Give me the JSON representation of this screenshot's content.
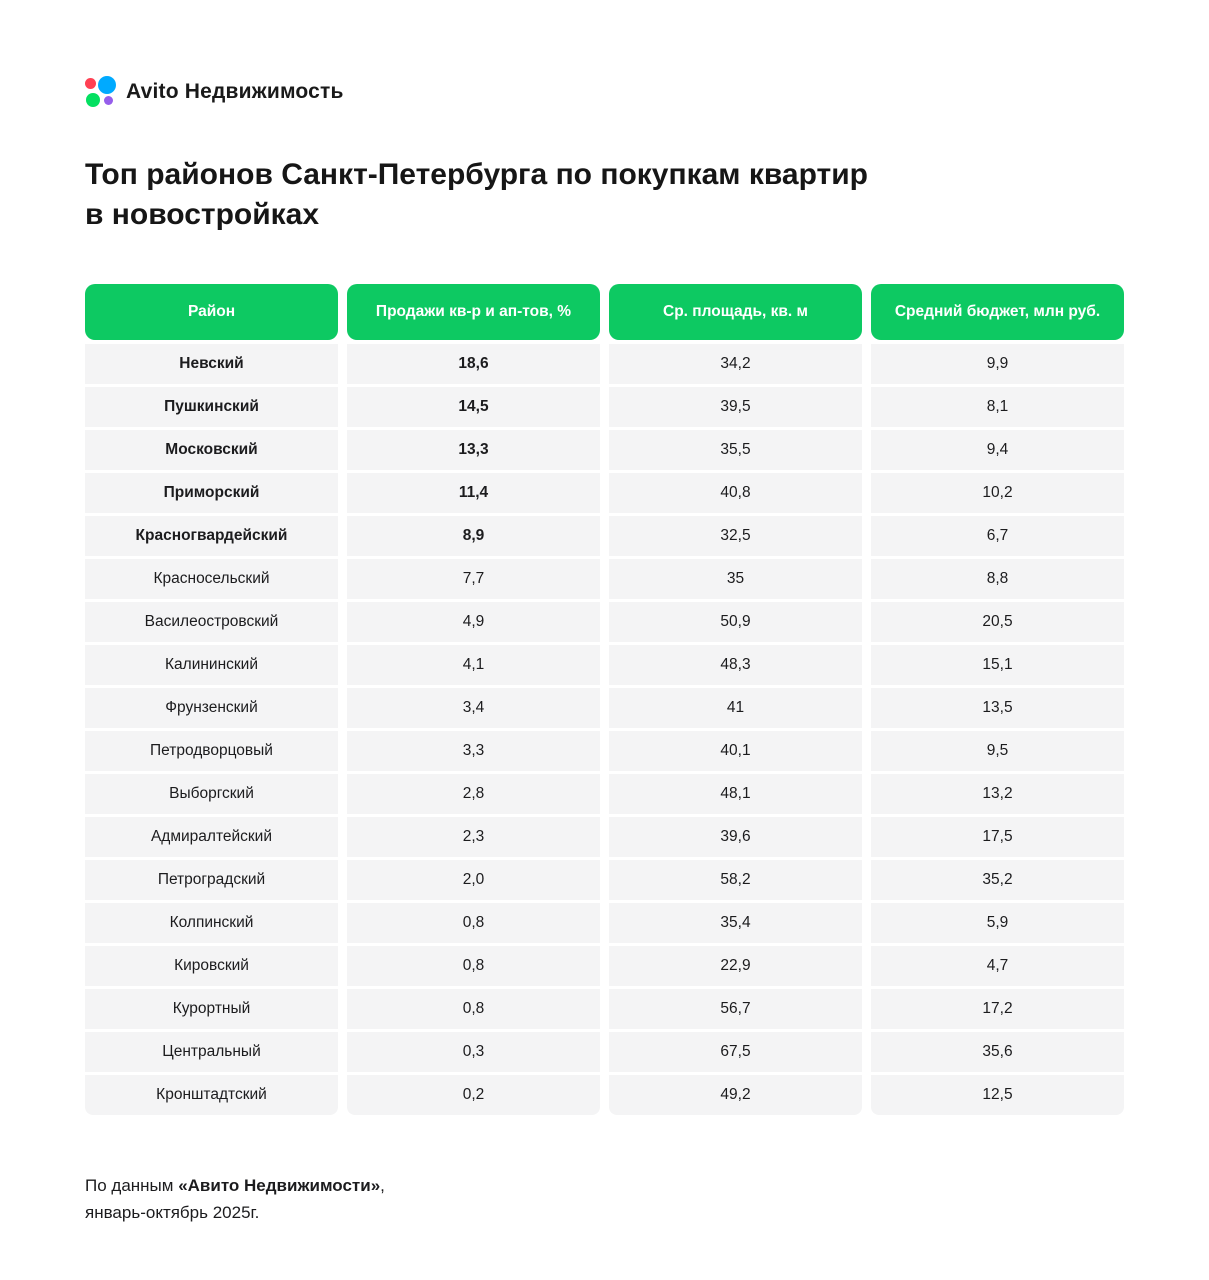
{
  "brand": {
    "name": "Avito Недвижимость",
    "logo_colors": {
      "red": "#ff4053",
      "blue": "#00aaff",
      "green": "#04e061",
      "purple": "#965eeb"
    }
  },
  "title": {
    "line1": "Топ районов Санкт-Петербурга по покупкам квартир",
    "line2": "в новостройках"
  },
  "chart_data": {
    "type": "table",
    "title": "Топ районов Санкт-Петербурга по покупкам квартир в новостройках",
    "columns": [
      "Район",
      "Продажи кв-р и ап-тов, %",
      "Ср. площадь, кв. м",
      "Средний бюджет, млн руб."
    ],
    "header_color": "#0dc962",
    "row_color": "#f4f4f5",
    "rows": [
      {
        "district": "Невский",
        "sales_pct": "18,6",
        "avg_area": "34,2",
        "avg_budget": "9,9",
        "bold": true
      },
      {
        "district": "Пушкинский",
        "sales_pct": "14,5",
        "avg_area": "39,5",
        "avg_budget": "8,1",
        "bold": true
      },
      {
        "district": "Московский",
        "sales_pct": "13,3",
        "avg_area": "35,5",
        "avg_budget": "9,4",
        "bold": true
      },
      {
        "district": "Приморский",
        "sales_pct": "11,4",
        "avg_area": "40,8",
        "avg_budget": "10,2",
        "bold": true
      },
      {
        "district": "Красногвардейский",
        "sales_pct": "8,9",
        "avg_area": "32,5",
        "avg_budget": "6,7",
        "bold": true
      },
      {
        "district": "Красносельский",
        "sales_pct": "7,7",
        "avg_area": "35",
        "avg_budget": "8,8",
        "bold": false
      },
      {
        "district": "Василеостровский",
        "sales_pct": "4,9",
        "avg_area": "50,9",
        "avg_budget": "20,5",
        "bold": false
      },
      {
        "district": "Калининский",
        "sales_pct": "4,1",
        "avg_area": "48,3",
        "avg_budget": "15,1",
        "bold": false
      },
      {
        "district": "Фрунзенский",
        "sales_pct": "3,4",
        "avg_area": "41",
        "avg_budget": "13,5",
        "bold": false
      },
      {
        "district": "Петродворцовый",
        "sales_pct": "3,3",
        "avg_area": "40,1",
        "avg_budget": "9,5",
        "bold": false
      },
      {
        "district": "Выборгский",
        "sales_pct": "2,8",
        "avg_area": "48,1",
        "avg_budget": "13,2",
        "bold": false
      },
      {
        "district": "Адмиралтейский",
        "sales_pct": "2,3",
        "avg_area": "39,6",
        "avg_budget": "17,5",
        "bold": false
      },
      {
        "district": "Петроградский",
        "sales_pct": "2,0",
        "avg_area": "58,2",
        "avg_budget": "35,2",
        "bold": false
      },
      {
        "district": "Колпинский",
        "sales_pct": "0,8",
        "avg_area": "35,4",
        "avg_budget": "5,9",
        "bold": false
      },
      {
        "district": "Кировский",
        "sales_pct": "0,8",
        "avg_area": "22,9",
        "avg_budget": "4,7",
        "bold": false
      },
      {
        "district": "Курортный",
        "sales_pct": "0,8",
        "avg_area": "56,7",
        "avg_budget": "17,2",
        "bold": false
      },
      {
        "district": "Центральный",
        "sales_pct": "0,3",
        "avg_area": "67,5",
        "avg_budget": "35,6",
        "bold": false
      },
      {
        "district": "Кронштадтский",
        "sales_pct": "0,2",
        "avg_area": "49,2",
        "avg_budget": "12,5",
        "bold": false
      }
    ]
  },
  "footer": {
    "prefix": "По данным ",
    "source": "«Авито Недвижимости»",
    "suffix": ",",
    "line2": "январь-октябрь 2025г."
  }
}
